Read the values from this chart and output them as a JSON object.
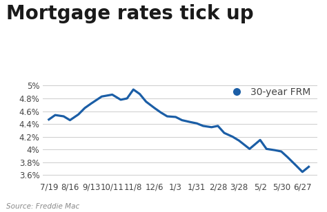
{
  "title": "Mortgage rates tick up",
  "legend_label": "30-year FRM",
  "source_text": "Source: Freddie Mac",
  "x_labels": [
    "7/19",
    "8/16",
    "9/13",
    "10/11",
    "11/8",
    "12/6",
    "1/3",
    "1/31",
    "2/28",
    "3/28",
    "5/2",
    "5/30",
    "6/27"
  ],
  "x_values": [
    0,
    1,
    2,
    3,
    4,
    5,
    6,
    7,
    8,
    9,
    10,
    11,
    12
  ],
  "x_data": [
    0,
    0.3,
    0.7,
    1.0,
    1.4,
    1.7,
    2.0,
    2.5,
    3.0,
    3.4,
    3.7,
    4.0,
    4.3,
    4.6,
    5.0,
    5.3,
    5.6,
    6.0,
    6.3,
    6.7,
    7.0,
    7.3,
    7.7,
    8.0,
    8.3,
    8.7,
    9.0,
    9.5,
    10.0,
    10.3,
    10.7,
    11.0,
    11.3,
    11.7,
    12.0,
    12.3
  ],
  "y_data": [
    4.47,
    4.54,
    4.52,
    4.46,
    4.55,
    4.65,
    4.72,
    4.83,
    4.86,
    4.78,
    4.8,
    4.94,
    4.87,
    4.75,
    4.65,
    4.58,
    4.52,
    4.51,
    4.46,
    4.43,
    4.41,
    4.37,
    4.35,
    4.37,
    4.26,
    4.2,
    4.14,
    4.01,
    4.15,
    4.01,
    3.99,
    3.97,
    3.88,
    3.75,
    3.65,
    3.73
  ],
  "y_ticks": [
    3.6,
    3.8,
    4.0,
    4.2,
    4.4,
    4.6,
    4.8,
    5.0
  ],
  "y_tick_labels": [
    "3.6%",
    "3.8%",
    "4%",
    "4.2%",
    "4.4%",
    "4.6%",
    "4.8%",
    "5%"
  ],
  "ylim": [
    3.52,
    5.08
  ],
  "xlim": [
    -0.3,
    12.7
  ],
  "line_color": "#1b5ea6",
  "dot_color": "#1b5ea6",
  "title_fontsize": 20,
  "axis_fontsize": 8.5,
  "legend_fontsize": 10,
  "source_fontsize": 7.5,
  "line_width": 2.3,
  "background_color": "#ffffff",
  "grid_color": "#cccccc",
  "title_color": "#1a1a1a",
  "axis_label_color": "#444444"
}
